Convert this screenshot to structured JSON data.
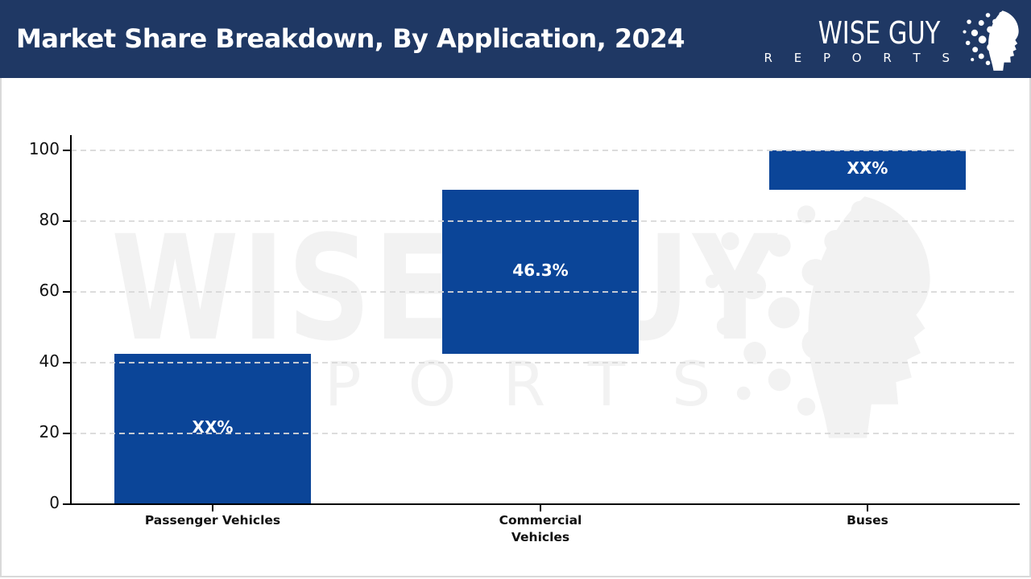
{
  "header": {
    "title": "Market Share Breakdown, By Application, 2024",
    "logo": {
      "name": "WISE GUY",
      "sub": "R E P O R T S"
    }
  },
  "watermark": {
    "name": "WISE GUY",
    "sub": "REPORTS"
  },
  "chart_data": {
    "type": "bar",
    "subtype": "floating-segment-waterfall",
    "title": "Market Share Breakdown, By Application, 2024",
    "categories": [
      "Passenger Vehicles",
      "Commercial Vehicles",
      "Buses"
    ],
    "category_lines": [
      [
        "Passenger Vehicles"
      ],
      [
        "Commercial",
        "Vehicles"
      ],
      [
        "Buses"
      ]
    ],
    "segments": [
      {
        "category": "Passenger Vehicles",
        "start": 0,
        "end": 42.6,
        "label": "XX%"
      },
      {
        "category": "Commercial Vehicles",
        "start": 42.6,
        "end": 88.9,
        "label": "46.3%"
      },
      {
        "category": "Buses",
        "start": 88.9,
        "end": 100,
        "label": "XX%"
      }
    ],
    "ylim": [
      0,
      100
    ],
    "yticks": [
      0,
      20,
      40,
      60,
      80,
      100
    ],
    "xlabel": "",
    "ylabel": "",
    "grid": "dashed-horizontal",
    "legend": "none",
    "colors": {
      "header_bg": "#1f3864",
      "bar": "#0b4598",
      "bar_label": "#ffffff",
      "grid": "#d8d8d8",
      "axis": "#000000",
      "watermark": "#f2f2f2"
    }
  }
}
